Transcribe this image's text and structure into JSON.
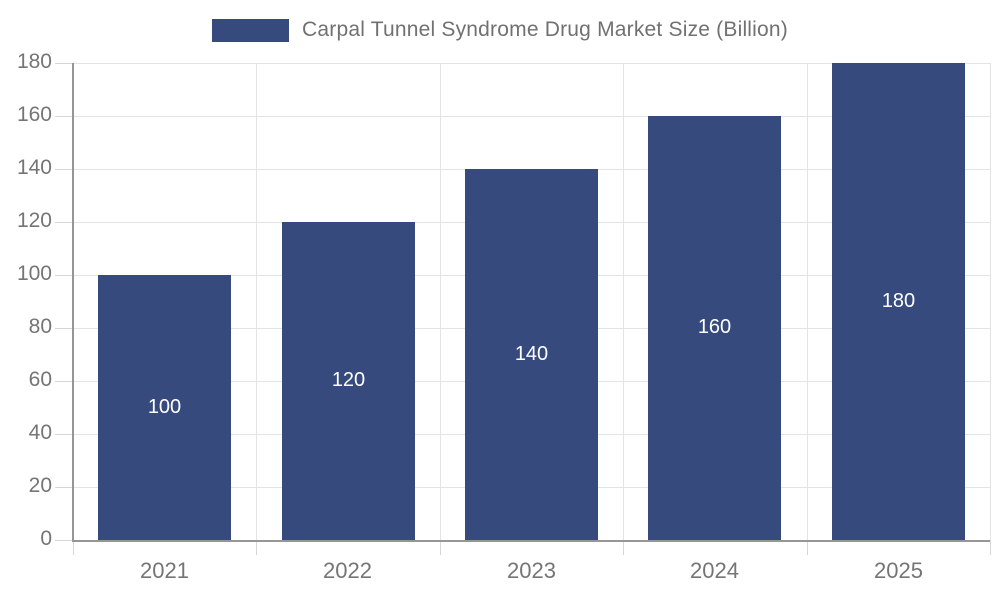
{
  "legend": {
    "label": "Carpal Tunnel Syndrome Drug Market Size (Billion)",
    "swatch_color": "#364a7d"
  },
  "chart_data": {
    "type": "bar",
    "title": "Carpal Tunnel Syndrome Drug Market Size (Billion)",
    "categories": [
      "2021",
      "2022",
      "2023",
      "2024",
      "2025"
    ],
    "series": [
      {
        "name": "Carpal Tunnel Syndrome Drug Market Size (Billion)",
        "values": [
          100,
          120,
          140,
          160,
          180
        ]
      }
    ],
    "data_labels": [
      "100",
      "120",
      "140",
      "160",
      "180"
    ],
    "xlabel": "",
    "ylabel": "",
    "ylim": [
      0,
      180
    ],
    "ytick_step": 20,
    "ytick_labels": [
      "0",
      "20",
      "40",
      "60",
      "80",
      "100",
      "120",
      "140",
      "160",
      "180"
    ],
    "grid": true,
    "legend_position": "top",
    "bar_color": "#364a7d",
    "bar_label_color": "#ffffff",
    "axis_text_color": "#757575",
    "axis_line_color": "#969696",
    "gridline_color": "#e4e4e4"
  }
}
